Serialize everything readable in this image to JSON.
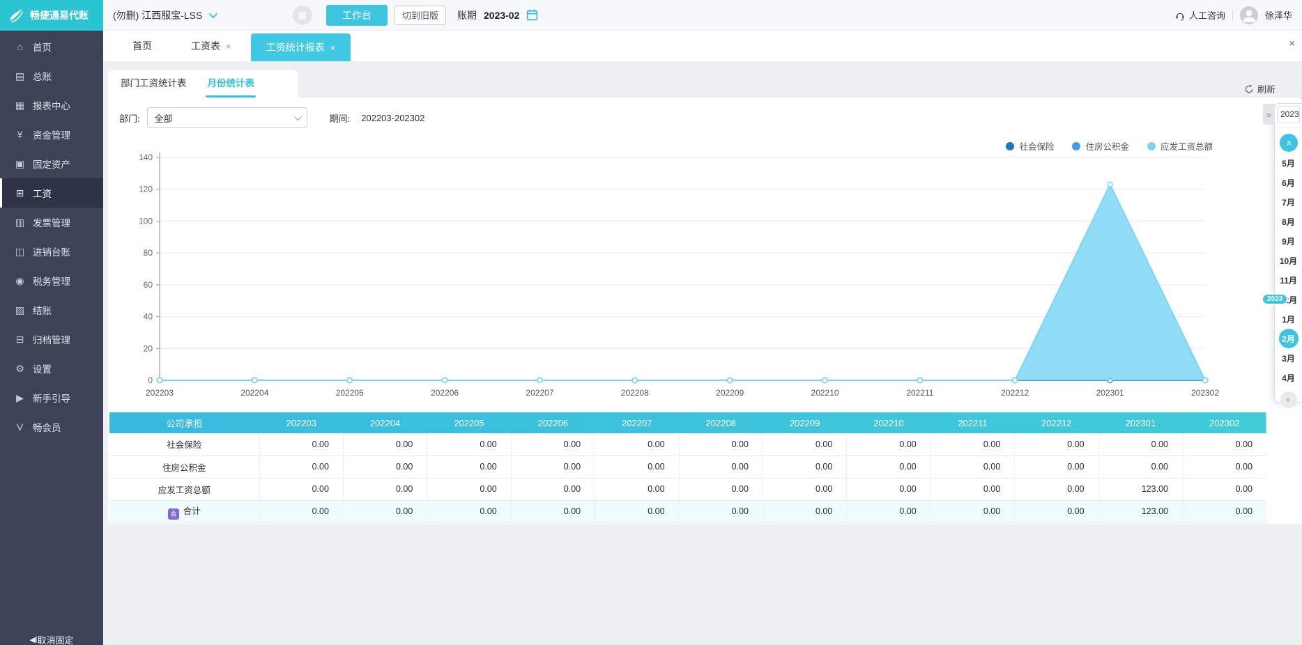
{
  "brand": {
    "name": "畅捷通易代账"
  },
  "sidebar": {
    "items": [
      {
        "label": "首页",
        "icon": "home-icon",
        "active": false
      },
      {
        "label": "总账",
        "icon": "ledger-icon",
        "active": false
      },
      {
        "label": "报表中心",
        "icon": "report-center-icon",
        "active": false
      },
      {
        "label": "资金管理",
        "icon": "funds-icon",
        "active": false
      },
      {
        "label": "固定资产",
        "icon": "fixed-assets-icon",
        "active": false
      },
      {
        "label": "工资",
        "icon": "salary-icon",
        "active": true
      },
      {
        "label": "发票管理",
        "icon": "invoice-icon",
        "active": false
      },
      {
        "label": "进销台账",
        "icon": "purchase-sales-icon",
        "active": false
      },
      {
        "label": "税务管理",
        "icon": "tax-icon",
        "active": false
      },
      {
        "label": "结账",
        "icon": "closing-icon",
        "active": false
      },
      {
        "label": "归档管理",
        "icon": "archive-icon",
        "active": false
      },
      {
        "label": "设置",
        "icon": "gear-icon",
        "active": false
      },
      {
        "label": "新手引导",
        "icon": "guide-icon",
        "active": false
      },
      {
        "label": "畅会员",
        "icon": "vip-icon",
        "active": false
      }
    ],
    "unpin_label": "取消固定"
  },
  "topbar": {
    "company": "(勿删) 江西服宝-LSS",
    "workbench_label": "工作台",
    "switch_old_label": "切到旧版",
    "period_label": "账期",
    "period_value": "2023-02",
    "support_label": "人工咨询",
    "username": "徐泽华"
  },
  "tabs": [
    {
      "label": "首页",
      "closable": false,
      "active": false
    },
    {
      "label": "工资表",
      "closable": true,
      "active": false
    },
    {
      "label": "工资统计报表",
      "closable": true,
      "active": true
    }
  ],
  "close_all_label": "×",
  "subtabs": [
    {
      "label": "部门工资统计表",
      "active": false
    },
    {
      "label": "月份统计表",
      "active": true
    }
  ],
  "refresh_label": "刷新",
  "filters": {
    "dept_label": "部门:",
    "dept_value": "全部",
    "period_label": "期间:",
    "period_value": "202203-202302"
  },
  "chart_data": {
    "type": "area",
    "categories": [
      "202203",
      "202204",
      "202205",
      "202206",
      "202207",
      "202208",
      "202209",
      "202210",
      "202211",
      "202212",
      "202301",
      "202302"
    ],
    "series": [
      {
        "name": "社会保险",
        "color": "#1e78c8",
        "values": [
          0,
          0,
          0,
          0,
          0,
          0,
          0,
          0,
          0,
          0,
          0,
          0
        ]
      },
      {
        "name": "住房公积金",
        "color": "#4a9be4",
        "values": [
          0,
          0,
          0,
          0,
          0,
          0,
          0,
          0,
          0,
          0,
          0,
          0
        ]
      },
      {
        "name": "应发工资总额",
        "color": "#79d5f6",
        "values": [
          0,
          0,
          0,
          0,
          0,
          0,
          0,
          0,
          0,
          0,
          123,
          0
        ]
      }
    ],
    "title": "",
    "xlabel": "",
    "ylabel": "",
    "ylim": [
      0,
      140
    ],
    "ytick_step": 20,
    "grid": true,
    "legend_position": "top-right"
  },
  "table": {
    "header": [
      "公司承担",
      "202203",
      "202204",
      "202205",
      "202206",
      "202207",
      "202208",
      "202209",
      "202210",
      "202211",
      "202212",
      "202301",
      "202302"
    ],
    "rows": [
      {
        "label": "社会保险",
        "highlight": false,
        "icon": null,
        "values": [
          "0.00",
          "0.00",
          "0.00",
          "0.00",
          "0.00",
          "0.00",
          "0.00",
          "0.00",
          "0.00",
          "0.00",
          "0.00",
          "0.00"
        ]
      },
      {
        "label": "住房公积金",
        "highlight": false,
        "icon": null,
        "values": [
          "0.00",
          "0.00",
          "0.00",
          "0.00",
          "0.00",
          "0.00",
          "0.00",
          "0.00",
          "0.00",
          "0.00",
          "0.00",
          "0.00"
        ]
      },
      {
        "label": "应发工资总额",
        "highlight": false,
        "icon": null,
        "values": [
          "0.00",
          "0.00",
          "0.00",
          "0.00",
          "0.00",
          "0.00",
          "0.00",
          "0.00",
          "0.00",
          "0.00",
          "123.00",
          "0.00"
        ]
      },
      {
        "label": "合计",
        "highlight": true,
        "icon": "calendar-sum-icon",
        "sum_icon_glyph": "合",
        "values": [
          "0.00",
          "0.00",
          "0.00",
          "0.00",
          "0.00",
          "0.00",
          "0.00",
          "0.00",
          "0.00",
          "0.00",
          "123.00",
          "0.00"
        ]
      }
    ]
  },
  "month_panel": {
    "current_period": "2023.0",
    "months": [
      "5月",
      "6月",
      "7月",
      "8月",
      "9月",
      "10月",
      "11月",
      "12月",
      "1月",
      "2月",
      "3月",
      "4月"
    ],
    "year_badge": "2023",
    "year_badge_before": "1月",
    "active_month": "2月"
  }
}
